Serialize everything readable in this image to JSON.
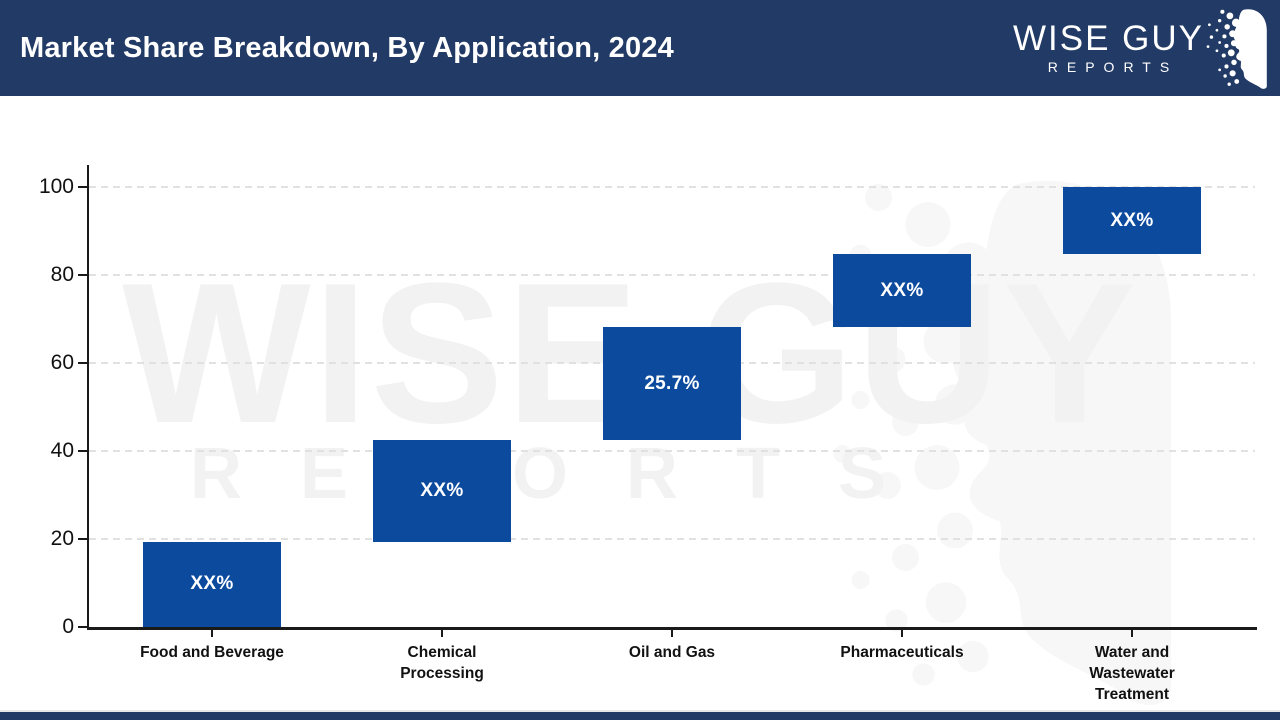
{
  "header": {
    "title": "Market Share Breakdown, By Application, 2024",
    "logo": {
      "line1": "WISE GUY",
      "line2": "REPORTS"
    }
  },
  "watermark": {
    "line1": "WISE GUY",
    "line2": "REPORTS"
  },
  "colors": {
    "header_bg": "#223A66",
    "bar": "#0C4A9E",
    "bar_label": "#FFFFFF",
    "grid": "#E1E1E1",
    "axis": "#1A1A1A",
    "watermark": "#F2F2F2"
  },
  "chart_data": {
    "type": "bar",
    "subtype": "waterfall",
    "title": "Market Share Breakdown, By Application, 2024",
    "categories": [
      "Food and Beverage",
      "Chemical Processing",
      "Oil and Gas",
      "Pharmaceuticals",
      "Water and Wastewater Treatment"
    ],
    "category_label_lines": [
      [
        "Food and Beverage"
      ],
      [
        "Chemical",
        "Processing"
      ],
      [
        "Oil and Gas"
      ],
      [
        "Pharmaceuticals"
      ],
      [
        "Water and",
        "Wastewater",
        "Treatment"
      ]
    ],
    "segments": [
      {
        "category": "Food and Beverage",
        "label": "XX%",
        "start": 0,
        "end": 19.4,
        "value": null
      },
      {
        "category": "Chemical Processing",
        "label": "XX%",
        "start": 19.4,
        "end": 42.4,
        "value": null
      },
      {
        "category": "Oil and Gas",
        "label": "25.7%",
        "start": 42.4,
        "end": 68.1,
        "value": 25.7
      },
      {
        "category": "Pharmaceuticals",
        "label": "XX%",
        "start": 68.1,
        "end": 84.7,
        "value": null
      },
      {
        "category": "Water and Wastewater Treatment",
        "label": "XX%",
        "start": 84.7,
        "end": 100.0,
        "value": null
      }
    ],
    "xlabel": "",
    "ylabel": "",
    "ylim": [
      0,
      105
    ],
    "yticks": [
      0,
      20,
      40,
      60,
      80,
      100
    ],
    "grid": "dashed-horizontal",
    "legend": false
  }
}
